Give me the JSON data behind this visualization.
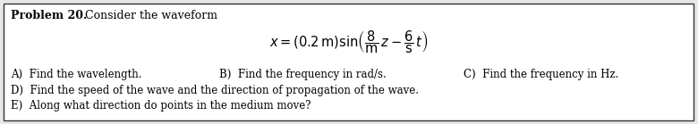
{
  "title_bold": "Problem 20.",
  "title_normal": "  Consider the waveform",
  "row1": [
    "A)  Find the wavelength.",
    "B)  Find the frequency in rad/s.",
    "C)  Find the frequency in Hz."
  ],
  "row2": "D)  Find the speed of the wave and the direction of propagation of the wave.",
  "row3": "E)  Along what direction do points in the medium move?",
  "bg_color": "#e8e8e8",
  "box_color": "white",
  "border_color": "#333333",
  "text_color": "#000000",
  "fig_width": 7.8,
  "fig_height": 1.39,
  "dpi": 100
}
